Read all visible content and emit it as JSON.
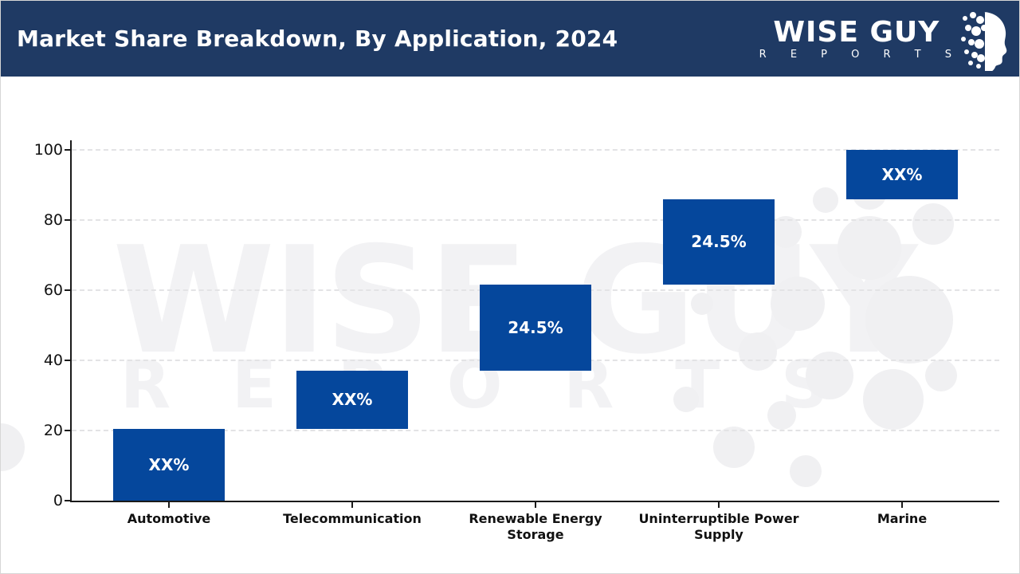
{
  "header": {
    "title": "Market Share Breakdown, By Application, 2024",
    "bg_color": "#1f3a64",
    "logo": {
      "line1": "WISE GUY",
      "line2": "R E P O R T S"
    }
  },
  "watermark": {
    "line1": "WISE GUY",
    "line2": "R E P O R T S"
  },
  "chart_data": {
    "type": "bar",
    "subtype": "waterfall",
    "title": "Market Share Breakdown, By Application, 2024",
    "categories": [
      "Automotive",
      "Telecommunication",
      "Renewable Energy Storage",
      "Uninterruptible Power Supply",
      "Marine"
    ],
    "segments": [
      {
        "category": "Automotive",
        "start": 0,
        "end": 20.5,
        "label": "XX%"
      },
      {
        "category": "Telecommunication",
        "start": 20.5,
        "end": 37,
        "label": "XX%"
      },
      {
        "category": "Renewable Energy Storage",
        "start": 37,
        "end": 61.5,
        "label": "24.5%"
      },
      {
        "category": "Uninterruptible Power Supply",
        "start": 61.5,
        "end": 86,
        "label": "24.5%"
      },
      {
        "category": "Marine",
        "start": 86,
        "end": 100,
        "label": "XX%"
      }
    ],
    "yticks": [
      0,
      20,
      40,
      60,
      80,
      100
    ],
    "ylim": [
      0,
      100
    ],
    "xlabel": "",
    "ylabel": "",
    "bar_color": "#05479c",
    "grid": "horizontal dashed",
    "legend": "none"
  }
}
